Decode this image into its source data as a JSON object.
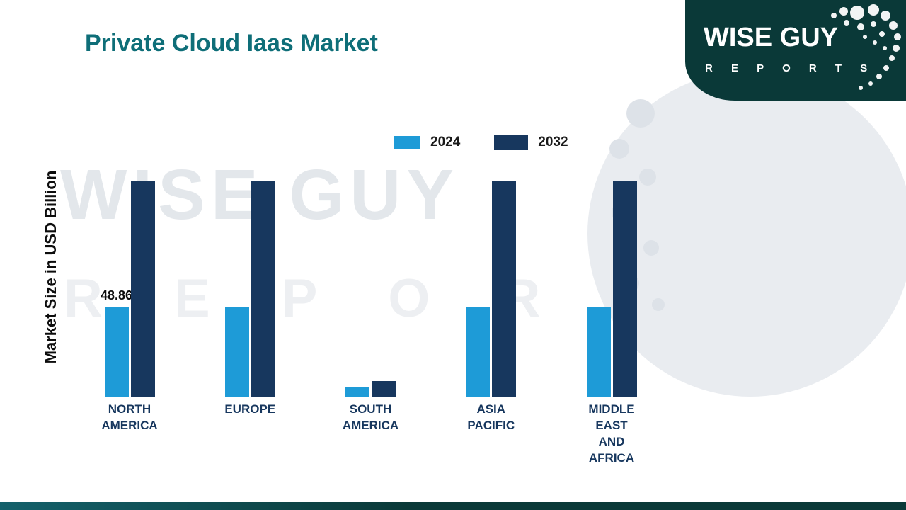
{
  "page": {
    "title": "Private Cloud Iaas Market"
  },
  "logo": {
    "name": "WISE GUY",
    "subtitle": "R E P O R T S",
    "background_color": "#0a3938"
  },
  "watermark": {
    "line1": "WISE GUY",
    "line2": "R E P O R T S"
  },
  "footer": {
    "bar_color": "#0a3938"
  },
  "colors": {
    "title_teal": "#0e6e78",
    "series_2024_blue": "#1e9bd7",
    "series_2032_navy": "#17375e",
    "category_label_navy": "#17375e"
  },
  "chart_data": {
    "type": "bar",
    "title": "Private Cloud Iaas Market",
    "xlabel": "",
    "ylabel": "Market Size in USD Billion",
    "ylim": [
      0,
      120
    ],
    "grid": false,
    "legend_position": "top",
    "categories": [
      "NORTH AMERICA",
      "EUROPE",
      "SOUTH AMERICA",
      "ASIA PACIFIC",
      "MIDDLE EAST AND AFRICA"
    ],
    "tick_labels": [
      "NORTH\nAMERICA",
      "EUROPE",
      "SOUTH\nAMERICA",
      "ASIA\nPACIFIC",
      "MIDDLE\nEAST\nAND\nAFRICA"
    ],
    "series": [
      {
        "name": "2024",
        "color": "#1e9bd7",
        "values": [
          48.86,
          48.9,
          5.4,
          48.9,
          48.9
        ]
      },
      {
        "name": "2032",
        "color": "#17375e",
        "values": [
          118,
          118,
          8.4,
          118,
          118
        ]
      }
    ],
    "annotations": [
      {
        "text": "48.86",
        "series": "2024",
        "category": "NORTH AMERICA"
      }
    ]
  }
}
